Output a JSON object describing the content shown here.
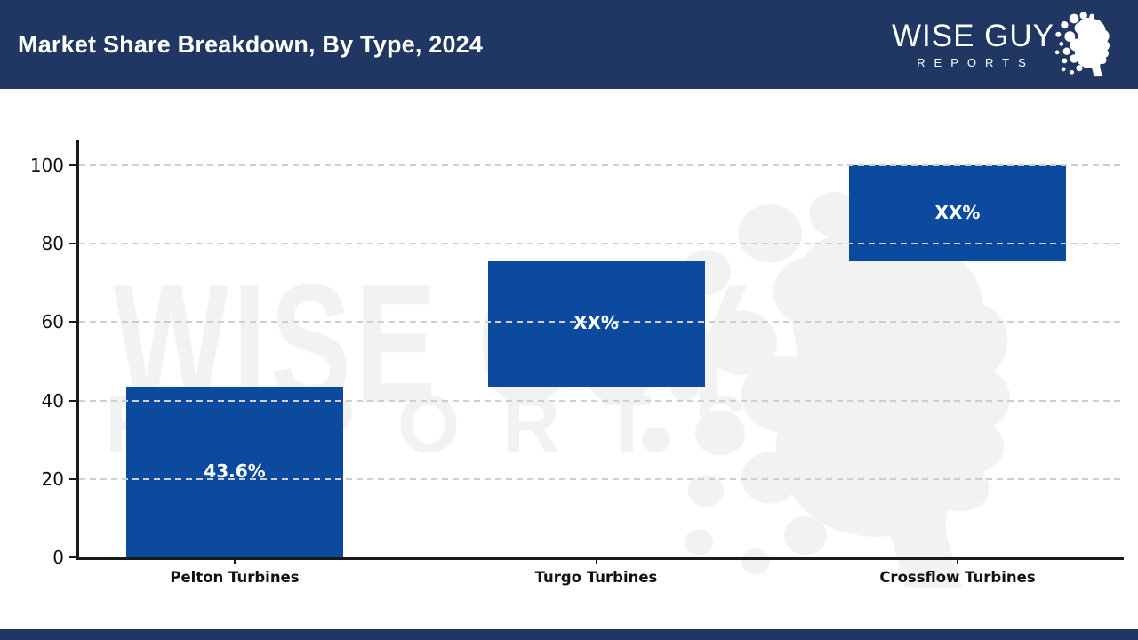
{
  "header": {
    "title": "Market Share Breakdown, By Type, 2024",
    "logo": {
      "brand_line1": "WISE GUY",
      "brand_line2": "REPORTS",
      "face_icon": "dotted-face-profile"
    }
  },
  "watermark": {
    "line1": "WISE GUY",
    "line2": "REPORTS",
    "face_icon": "dotted-face-profile"
  },
  "chart_data": {
    "type": "bar",
    "subtype": "stepped-waterfall",
    "title": "Market Share Breakdown, By Type, 2024",
    "categories": [
      "Pelton Turbines",
      "Turgo Turbines",
      "Crossflow Turbines"
    ],
    "segments": [
      {
        "category": "Pelton Turbines",
        "start": 0,
        "end": 43.6,
        "label": "43.6%"
      },
      {
        "category": "Turgo Turbines",
        "start": 43.6,
        "end": 75.6,
        "label": "XX%"
      },
      {
        "category": "Crossflow Turbines",
        "start": 75.6,
        "end": 100,
        "label": "XX%"
      }
    ],
    "ylim": [
      0,
      100
    ],
    "yticks": [
      0,
      20,
      40,
      60,
      80,
      100
    ],
    "xlabel": "",
    "ylabel": "",
    "grid": "horizontal-dashed",
    "grid_above_bars": true,
    "legend": "none"
  },
  "colors": {
    "header_bg": "#213763",
    "footer_bg": "#213763",
    "bar": "#0b4a9e",
    "bar_label": "#ffffff",
    "grid": "#cfcfcf",
    "axis": "#1a1a1a",
    "tick_label": "#111111",
    "watermark": "#f2f2f2",
    "title_text": "#ffffff"
  }
}
